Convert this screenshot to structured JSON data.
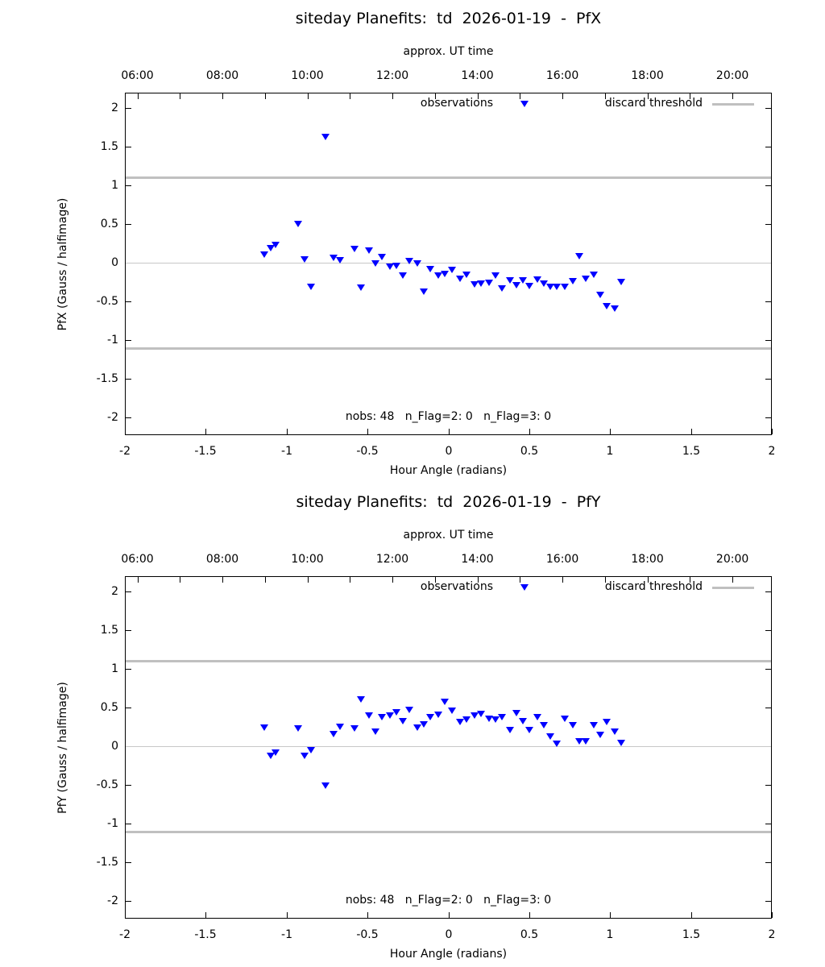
{
  "chart_data": [
    {
      "type": "scatter",
      "title": "siteday Planefits:  td  2026-01-19  -  PfX",
      "ut_axis": {
        "title": "approx. UT time",
        "label_hours": [
          6,
          8,
          10,
          12,
          14,
          16,
          18,
          20
        ],
        "tick_labels": [
          "06:00",
          "08:00",
          "10:00",
          "12:00",
          "14:00",
          "16:00",
          "18:00",
          "20:00"
        ],
        "minor_hours": [
          7,
          9,
          11,
          13,
          15,
          17,
          19
        ]
      },
      "xlabel": "Hour Angle (radians)",
      "ylabel": "PfX (Gauss / halfimage)",
      "xlim": [
        -2,
        2
      ],
      "ylim": [
        -2.2,
        2.2
      ],
      "x_tick_values": [
        -2,
        -1.5,
        -1,
        -0.5,
        0,
        0.5,
        1,
        1.5,
        2
      ],
      "x_tick_labels": [
        "-2",
        "-1.5",
        "-1",
        "-0.5",
        "0",
        "0.5",
        "1",
        "1.5",
        "2"
      ],
      "y_tick_values": [
        2,
        1.5,
        1,
        0.5,
        0,
        -0.5,
        -1,
        -1.5,
        -2
      ],
      "y_tick_labels": [
        "2",
        "1.5",
        "1",
        "0.5",
        "0",
        "-0.5",
        "-1",
        "-1.5",
        "-2"
      ],
      "legend": {
        "observations_label": "observations",
        "threshold_label": "discard threshold"
      },
      "annotation": "nobs: 48   n_Flag=2: 0   n_Flag=3: 0",
      "discard_threshold": 1.1,
      "zero_line": 0,
      "colors": {
        "marker": "#0000ff",
        "threshold_line": "#c0c0c0",
        "zero_line": "#c8c8c8"
      },
      "series": [
        {
          "name": "observations",
          "x": [
            -1.14,
            -1.1,
            -1.07,
            -0.93,
            -0.89,
            -0.85,
            -0.76,
            -0.71,
            -0.67,
            -0.58,
            -0.54,
            -0.49,
            -0.45,
            -0.41,
            -0.36,
            -0.32,
            -0.28,
            -0.24,
            -0.19,
            -0.15,
            -0.11,
            -0.06,
            -0.02,
            0.02,
            0.07,
            0.11,
            0.16,
            0.2,
            0.25,
            0.29,
            0.33,
            0.38,
            0.42,
            0.46,
            0.5,
            0.55,
            0.59,
            0.63,
            0.67,
            0.72,
            0.77,
            0.81,
            0.85,
            0.9,
            0.94,
            0.98,
            1.03,
            1.07
          ],
          "y": [
            0.1,
            0.19,
            0.23,
            0.5,
            0.04,
            -0.31,
            1.63,
            0.06,
            0.03,
            0.18,
            -0.32,
            0.16,
            -0.01,
            0.07,
            -0.05,
            -0.04,
            -0.17,
            0.02,
            -0.01,
            -0.38,
            -0.08,
            -0.17,
            -0.15,
            -0.09,
            -0.21,
            -0.16,
            -0.28,
            -0.27,
            -0.26,
            -0.17,
            -0.33,
            -0.23,
            -0.29,
            -0.23,
            -0.3,
            -0.22,
            -0.27,
            -0.31,
            -0.31,
            -0.31,
            -0.24,
            0.08,
            -0.21,
            -0.16,
            -0.42,
            -0.56,
            -0.59,
            -0.25
          ]
        }
      ]
    },
    {
      "type": "scatter",
      "title": "siteday Planefits:  td  2026-01-19  -  PfY",
      "ut_axis": {
        "title": "approx. UT time",
        "label_hours": [
          6,
          8,
          10,
          12,
          14,
          16,
          18,
          20
        ],
        "tick_labels": [
          "06:00",
          "08:00",
          "10:00",
          "12:00",
          "14:00",
          "16:00",
          "18:00",
          "20:00"
        ],
        "minor_hours": [
          7,
          9,
          11,
          13,
          15,
          17,
          19
        ]
      },
      "xlabel": "Hour Angle (radians)",
      "ylabel": "PfY (Gauss / halfimage)",
      "xlim": [
        -2,
        2
      ],
      "ylim": [
        -2.2,
        2.2
      ],
      "x_tick_values": [
        -2,
        -1.5,
        -1,
        -0.5,
        0,
        0.5,
        1,
        1.5,
        2
      ],
      "x_tick_labels": [
        "-2",
        "-1.5",
        "-1",
        "-0.5",
        "0",
        "0.5",
        "1",
        "1.5",
        "2"
      ],
      "y_tick_values": [
        2,
        1.5,
        1,
        0.5,
        0,
        -0.5,
        -1,
        -1.5,
        -2
      ],
      "y_tick_labels": [
        "2",
        "1.5",
        "1",
        "0.5",
        "0",
        "-0.5",
        "-1",
        "-1.5",
        "-2"
      ],
      "legend": {
        "observations_label": "observations",
        "threshold_label": "discard threshold"
      },
      "annotation": "nobs: 48   n_Flag=2: 0   n_Flag=3: 0",
      "discard_threshold": 1.1,
      "zero_line": 0,
      "colors": {
        "marker": "#0000ff",
        "threshold_line": "#c0c0c0",
        "zero_line": "#c8c8c8"
      },
      "series": [
        {
          "name": "observations",
          "x": [
            -1.14,
            -1.1,
            -1.07,
            -0.93,
            -0.89,
            -0.85,
            -0.76,
            -0.71,
            -0.67,
            -0.58,
            -0.54,
            -0.49,
            -0.45,
            -0.41,
            -0.36,
            -0.32,
            -0.28,
            -0.24,
            -0.19,
            -0.15,
            -0.11,
            -0.06,
            -0.02,
            0.02,
            0.07,
            0.11,
            0.16,
            0.2,
            0.25,
            0.29,
            0.33,
            0.38,
            0.42,
            0.46,
            0.5,
            0.55,
            0.59,
            0.63,
            0.67,
            0.72,
            0.77,
            0.81,
            0.85,
            0.9,
            0.94,
            0.98,
            1.03,
            1.07
          ],
          "y": [
            0.24,
            -0.13,
            -0.08,
            0.23,
            -0.13,
            -0.05,
            -0.51,
            0.16,
            0.25,
            0.23,
            0.6,
            0.4,
            0.19,
            0.38,
            0.4,
            0.44,
            0.32,
            0.47,
            0.24,
            0.28,
            0.37,
            0.41,
            0.57,
            0.46,
            0.31,
            0.34,
            0.4,
            0.42,
            0.35,
            0.34,
            0.37,
            0.21,
            0.43,
            0.32,
            0.21,
            0.38,
            0.27,
            0.13,
            0.03,
            0.35,
            0.27,
            0.06,
            0.06,
            0.27,
            0.15,
            0.31,
            0.19,
            0.04
          ]
        }
      ]
    }
  ]
}
